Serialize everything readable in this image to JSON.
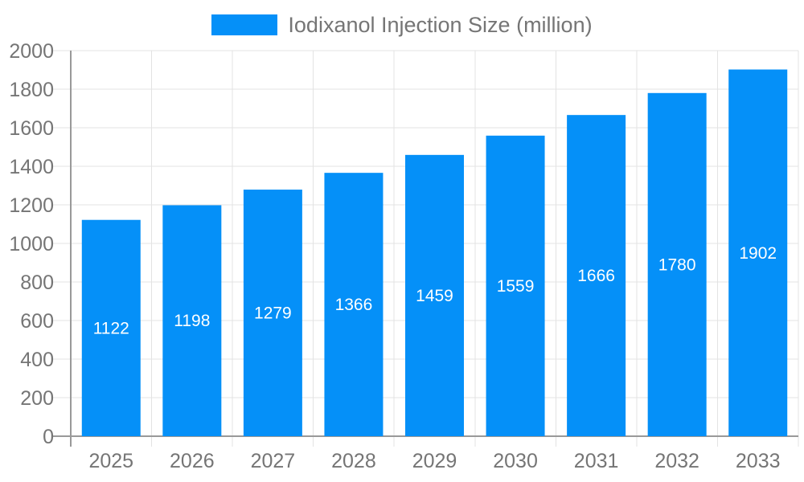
{
  "legend": {
    "label": "Iodixanol Injection Size (million)",
    "swatch_color": "#0590f8",
    "text_color": "#757575"
  },
  "chart_data": {
    "type": "bar",
    "title": "",
    "xlabel": "",
    "ylabel": "",
    "categories": [
      "2025",
      "2026",
      "2027",
      "2028",
      "2029",
      "2030",
      "2031",
      "2032",
      "2033"
    ],
    "series": [
      {
        "name": "Iodixanol Injection Size (million)",
        "values": [
          1122,
          1198,
          1279,
          1366,
          1459,
          1559,
          1666,
          1780,
          1902
        ]
      }
    ],
    "data_labels_shown": true,
    "ylim": [
      0,
      2000
    ],
    "yticks": [
      0,
      200,
      400,
      600,
      800,
      1000,
      1200,
      1400,
      1600,
      1800,
      2000
    ],
    "grid": true,
    "legend_position": "top-center",
    "colors": {
      "bar": "#0590f8",
      "bar_label_text": "#ffffff",
      "axis_text": "#757575",
      "grid_line": "#e3e3e3",
      "axis_line": "#999999",
      "background": "#ffffff"
    }
  }
}
